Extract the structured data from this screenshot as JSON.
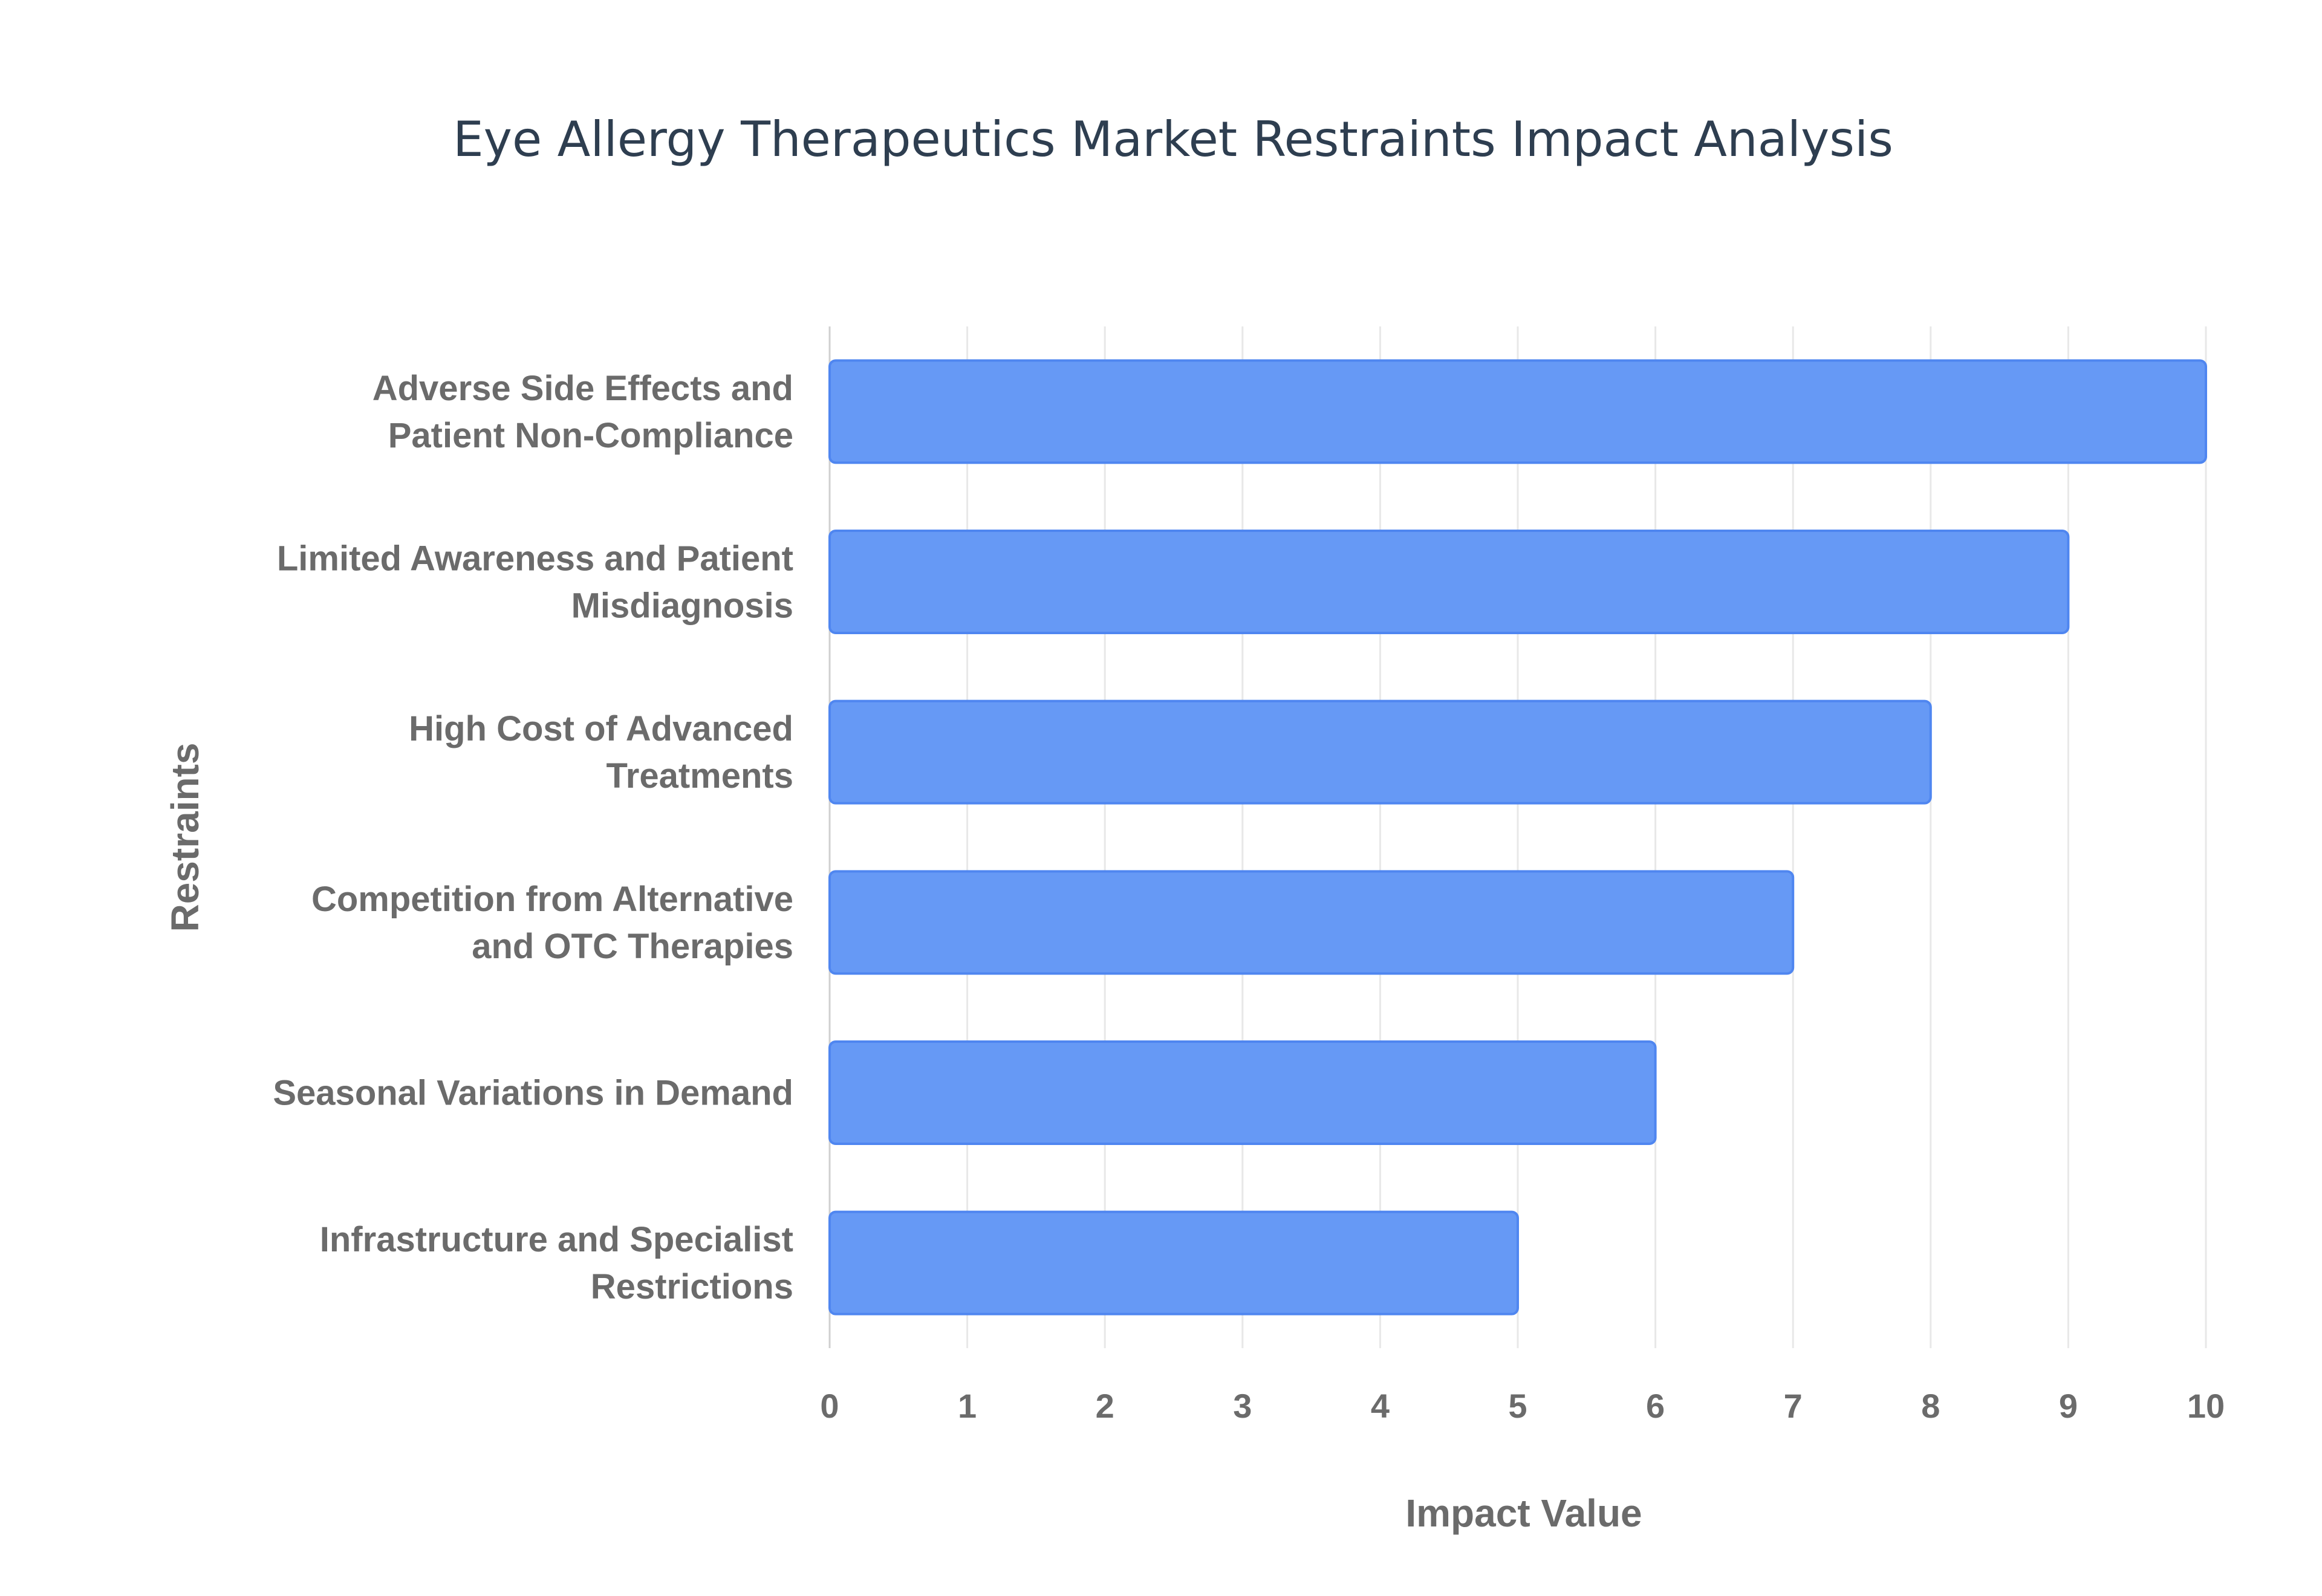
{
  "chart_data": {
    "type": "bar",
    "orientation": "horizontal",
    "title": "Eye Allergy Therapeutics Market Restraints Impact Analysis",
    "xlabel": "Impact Value",
    "ylabel": "Restraints",
    "categories": [
      [
        "Adverse Side Effects and",
        "Patient Non-Compliance"
      ],
      [
        "Limited Awareness and Patient",
        "Misdiagnosis"
      ],
      [
        "High Cost of Advanced",
        "Treatments"
      ],
      [
        "Competition from Alternative",
        "and OTC Therapies"
      ],
      [
        "Seasonal Variations in Demand"
      ],
      [
        "Infrastructure and Specialist",
        "Restrictions"
      ]
    ],
    "values": [
      10,
      9,
      8,
      7,
      6,
      5
    ],
    "xlim": [
      0,
      10
    ],
    "xticks": [
      "0",
      "1",
      "2",
      "3",
      "4",
      "5",
      "6",
      "7",
      "8",
      "9",
      "10"
    ],
    "grid": true,
    "legend": "none",
    "bar_color": "#6699f5",
    "bar_edge_color": "#4f86f0"
  }
}
